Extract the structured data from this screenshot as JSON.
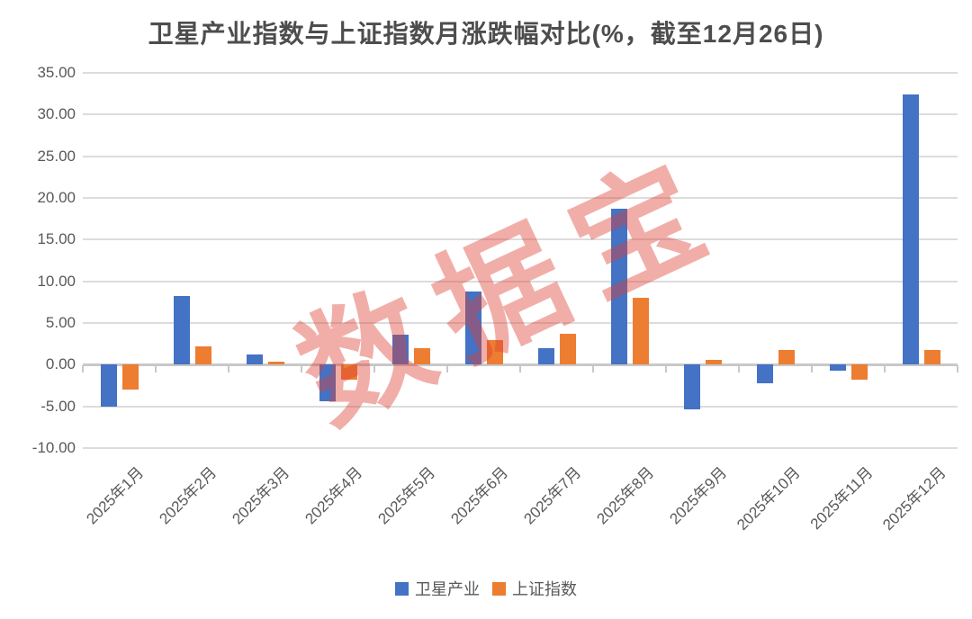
{
  "title": "卫星产业指数与上证指数月涨跌幅对比(%，截至12月26日)",
  "watermark": "数据宝",
  "colors": {
    "series1": "#4472C4",
    "series2": "#ED7D31",
    "grid": "#DCDCDC",
    "zero_line": "#C8C8C8",
    "tick": "#C8C8C8",
    "axis_text": "#595959",
    "title_text": "#4D4D4D",
    "watermark": "rgba(222,62,50,0.42)"
  },
  "chart_data": {
    "type": "bar",
    "title": "卫星产业指数与上证指数月涨跌幅对比(%，截至12月26日)",
    "categories": [
      "2025年1月",
      "2025年2月",
      "2025年3月",
      "2025年4月",
      "2025年5月",
      "2025年6月",
      "2025年7月",
      "2025年8月",
      "2025年9月",
      "2025年10月",
      "2025年11月",
      "2025年12月"
    ],
    "series": [
      {
        "name": "卫星产业",
        "color": "#4472C4",
        "values": [
          -5.0,
          8.2,
          1.2,
          -4.4,
          3.6,
          8.8,
          2.0,
          18.7,
          -5.4,
          -2.2,
          -0.7,
          32.4
        ]
      },
      {
        "name": "上证指数",
        "color": "#ED7D31",
        "values": [
          -3.0,
          2.2,
          0.4,
          -1.8,
          2.0,
          2.9,
          3.7,
          8.0,
          0.6,
          1.8,
          -1.8,
          1.8
        ]
      }
    ],
    "ylim": [
      -10,
      35
    ],
    "ytick_step": 5,
    "yticks": [
      35,
      30,
      25,
      20,
      15,
      10,
      5,
      0,
      -5,
      -10
    ],
    "ytick_labels": [
      "35.00",
      "30.00",
      "25.00",
      "20.00",
      "15.00",
      "10.00",
      "5.00",
      "0.00",
      "-5.00",
      "-10.00"
    ],
    "grid": true,
    "legend_position": "bottom",
    "legend": [
      "卫星产业",
      "上证指数"
    ]
  }
}
